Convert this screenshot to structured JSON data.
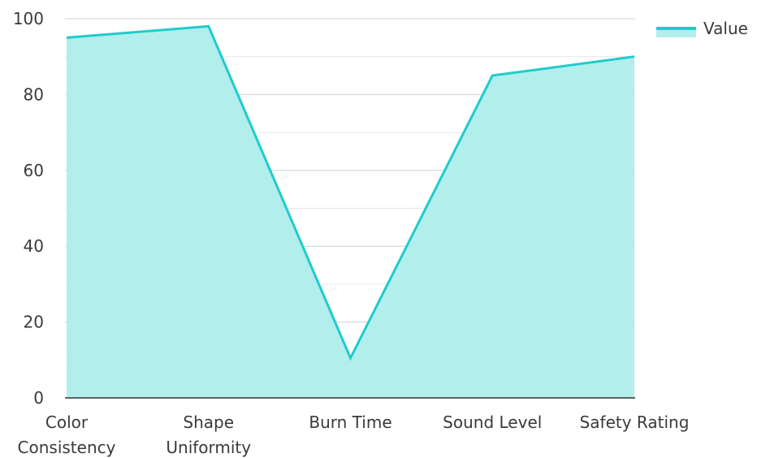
{
  "chart_data": {
    "type": "area",
    "categories": [
      [
        "Color",
        "Consistency"
      ],
      [
        "Shape",
        "Uniformity"
      ],
      [
        "Burn Time"
      ],
      [
        "Sound Level"
      ],
      [
        "Safety Rating"
      ]
    ],
    "series": [
      {
        "name": "Value",
        "values": [
          95,
          98,
          10.5,
          85,
          90
        ],
        "line_color": "#1fcccc",
        "fill_color": "#b2eeec"
      }
    ],
    "title": "",
    "xlabel": "",
    "ylabel": "",
    "ylim": [
      0,
      100
    ],
    "yticks": [
      0,
      20,
      40,
      60,
      80,
      100
    ],
    "grid": true,
    "legend": "top-right"
  }
}
